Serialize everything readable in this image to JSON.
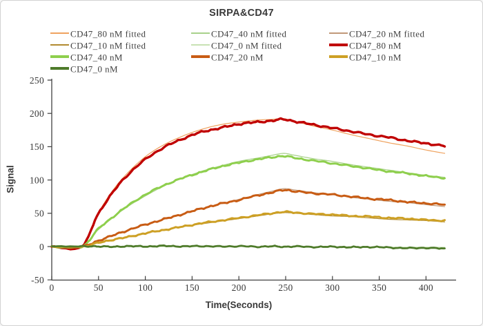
{
  "title": "SIRPA&CD47",
  "chart_data": {
    "type": "line",
    "title": "SIRPA&CD47",
    "xlabel": "Time(Seconds)",
    "ylabel": "Signal",
    "xlim": [
      0,
      432
    ],
    "ylim": [
      -50,
      250
    ],
    "xticks": [
      0,
      50,
      100,
      150,
      200,
      250,
      300,
      350,
      400
    ],
    "yticks": [
      -50,
      0,
      50,
      100,
      150,
      200,
      250
    ],
    "grid": false,
    "legend_position": "top-left, 3 columns",
    "axis_color": "#3f3f3f",
    "phases": {
      "baseline_end_s": 32,
      "association_end_s": 248,
      "end_s": 420
    },
    "series": [
      {
        "label": "CD47_80 nM fitted",
        "kind": "fitted",
        "color": "#efa25e",
        "width": 1.2,
        "noise": 0,
        "points": [
          [
            0,
            0
          ],
          [
            32,
            0
          ],
          [
            48,
            46
          ],
          [
            64,
            82
          ],
          [
            80,
            109
          ],
          [
            100,
            135
          ],
          [
            120,
            153
          ],
          [
            140,
            166
          ],
          [
            160,
            176
          ],
          [
            180,
            183
          ],
          [
            200,
            187
          ],
          [
            220,
            190
          ],
          [
            235,
            191
          ],
          [
            248,
            192
          ],
          [
            260,
            188
          ],
          [
            280,
            181
          ],
          [
            300,
            175
          ],
          [
            320,
            168
          ],
          [
            340,
            162
          ],
          [
            360,
            156
          ],
          [
            380,
            151
          ],
          [
            400,
            145
          ],
          [
            420,
            140
          ]
        ]
      },
      {
        "label": "CD47_40 nM fitted",
        "kind": "fitted",
        "color": "#a8d18a",
        "width": 1.2,
        "noise": 0,
        "points": [
          [
            0,
            0
          ],
          [
            32,
            0
          ],
          [
            48,
            23
          ],
          [
            64,
            42
          ],
          [
            80,
            59
          ],
          [
            100,
            76
          ],
          [
            120,
            91
          ],
          [
            140,
            103
          ],
          [
            160,
            113
          ],
          [
            180,
            121
          ],
          [
            200,
            128
          ],
          [
            220,
            133
          ],
          [
            235,
            137
          ],
          [
            248,
            140
          ],
          [
            260,
            137
          ],
          [
            280,
            132
          ],
          [
            300,
            128
          ],
          [
            320,
            123
          ],
          [
            340,
            119
          ],
          [
            360,
            115
          ],
          [
            380,
            111
          ],
          [
            400,
            107
          ],
          [
            420,
            104
          ]
        ]
      },
      {
        "label": "CD47_20 nM fitted",
        "kind": "fitted",
        "color": "#c09878",
        "width": 1.2,
        "noise": 0,
        "points": [
          [
            0,
            0
          ],
          [
            32,
            0
          ],
          [
            48,
            8
          ],
          [
            64,
            16
          ],
          [
            80,
            24
          ],
          [
            100,
            33
          ],
          [
            120,
            41
          ],
          [
            140,
            49
          ],
          [
            160,
            57
          ],
          [
            180,
            64
          ],
          [
            200,
            71
          ],
          [
            220,
            78
          ],
          [
            235,
            83
          ],
          [
            248,
            87
          ],
          [
            260,
            85
          ],
          [
            280,
            81
          ],
          [
            300,
            78
          ],
          [
            320,
            74
          ],
          [
            340,
            71
          ],
          [
            360,
            68
          ],
          [
            380,
            66
          ],
          [
            400,
            63
          ],
          [
            420,
            60
          ]
        ]
      },
      {
        "label": "CD47_10 nM fitted",
        "kind": "fitted",
        "color": "#b18a2f",
        "width": 1.2,
        "noise": 0,
        "points": [
          [
            0,
            0
          ],
          [
            32,
            0
          ],
          [
            48,
            5
          ],
          [
            64,
            10
          ],
          [
            80,
            14
          ],
          [
            100,
            20
          ],
          [
            120,
            25
          ],
          [
            140,
            30
          ],
          [
            160,
            34
          ],
          [
            180,
            38
          ],
          [
            200,
            42
          ],
          [
            220,
            46
          ],
          [
            235,
            49
          ],
          [
            248,
            51
          ],
          [
            260,
            50
          ],
          [
            280,
            48
          ],
          [
            300,
            46
          ],
          [
            320,
            45
          ],
          [
            340,
            43
          ],
          [
            360,
            41
          ],
          [
            380,
            40
          ],
          [
            400,
            39
          ],
          [
            420,
            37
          ]
        ]
      },
      {
        "label": "CD47_0 nM fitted",
        "kind": "fitted",
        "color": "#c8e2b3",
        "width": 1.2,
        "noise": 0,
        "points": [
          [
            0,
            0
          ],
          [
            100,
            0
          ],
          [
            200,
            0
          ],
          [
            300,
            -0.5
          ],
          [
            420,
            -1
          ]
        ]
      },
      {
        "label": "CD47_80 nM",
        "kind": "raw",
        "color": "#c00000",
        "width": 3.4,
        "noise": 1.6,
        "points": [
          [
            0,
            0
          ],
          [
            32,
            0
          ],
          [
            48,
            45
          ],
          [
            64,
            79
          ],
          [
            80,
            106
          ],
          [
            100,
            131
          ],
          [
            120,
            149
          ],
          [
            140,
            162
          ],
          [
            160,
            172
          ],
          [
            180,
            178
          ],
          [
            200,
            184
          ],
          [
            220,
            187
          ],
          [
            235,
            189
          ],
          [
            248,
            191
          ],
          [
            260,
            188
          ],
          [
            280,
            183
          ],
          [
            300,
            178
          ],
          [
            320,
            173
          ],
          [
            340,
            168
          ],
          [
            360,
            164
          ],
          [
            380,
            159
          ],
          [
            400,
            155
          ],
          [
            420,
            151
          ]
        ]
      },
      {
        "label": "CD47_40 nM",
        "kind": "raw",
        "color": "#8ecf4d",
        "width": 3.0,
        "noise": 1.4,
        "points": [
          [
            0,
            0
          ],
          [
            32,
            0
          ],
          [
            48,
            24
          ],
          [
            64,
            43
          ],
          [
            80,
            60
          ],
          [
            100,
            78
          ],
          [
            120,
            92
          ],
          [
            140,
            103
          ],
          [
            160,
            112
          ],
          [
            180,
            120
          ],
          [
            200,
            126
          ],
          [
            220,
            131
          ],
          [
            235,
            134
          ],
          [
            248,
            136
          ],
          [
            260,
            133
          ],
          [
            280,
            129
          ],
          [
            300,
            125
          ],
          [
            320,
            121
          ],
          [
            340,
            117
          ],
          [
            360,
            113
          ],
          [
            380,
            110
          ],
          [
            400,
            106
          ],
          [
            420,
            103
          ]
        ]
      },
      {
        "label": "CD47_20 nM",
        "kind": "raw",
        "color": "#c85c14",
        "width": 3.0,
        "noise": 1.5,
        "points": [
          [
            0,
            0
          ],
          [
            32,
            0
          ],
          [
            48,
            8
          ],
          [
            64,
            16
          ],
          [
            80,
            24
          ],
          [
            100,
            33
          ],
          [
            120,
            41
          ],
          [
            140,
            49
          ],
          [
            160,
            57
          ],
          [
            180,
            64
          ],
          [
            200,
            70
          ],
          [
            220,
            77
          ],
          [
            235,
            81
          ],
          [
            248,
            85
          ],
          [
            260,
            83
          ],
          [
            280,
            80
          ],
          [
            300,
            78
          ],
          [
            320,
            75
          ],
          [
            340,
            72
          ],
          [
            360,
            70
          ],
          [
            380,
            67
          ],
          [
            400,
            65
          ],
          [
            420,
            63
          ]
        ]
      },
      {
        "label": "CD47_10 nM",
        "kind": "raw",
        "color": "#cda025",
        "width": 3.0,
        "noise": 1.3,
        "points": [
          [
            0,
            0
          ],
          [
            32,
            0
          ],
          [
            48,
            5
          ],
          [
            64,
            10
          ],
          [
            80,
            14
          ],
          [
            100,
            20
          ],
          [
            120,
            25
          ],
          [
            140,
            30
          ],
          [
            160,
            35
          ],
          [
            180,
            39
          ],
          [
            200,
            43
          ],
          [
            220,
            47
          ],
          [
            235,
            50
          ],
          [
            248,
            52
          ],
          [
            260,
            51
          ],
          [
            280,
            49
          ],
          [
            300,
            48
          ],
          [
            320,
            46
          ],
          [
            340,
            45
          ],
          [
            360,
            43
          ],
          [
            380,
            42
          ],
          [
            400,
            40
          ],
          [
            420,
            39
          ]
        ]
      },
      {
        "label": "CD47_0 nM",
        "kind": "raw",
        "color": "#4e7b2a",
        "width": 2.8,
        "noise": 1.1,
        "points": [
          [
            0,
            0.3
          ],
          [
            32,
            0.2
          ],
          [
            48,
            0.5
          ],
          [
            64,
            -0.4
          ],
          [
            80,
            0.6
          ],
          [
            100,
            0.2
          ],
          [
            120,
            0.9
          ],
          [
            140,
            0.3
          ],
          [
            160,
            0.7
          ],
          [
            180,
            0.1
          ],
          [
            200,
            0.5
          ],
          [
            220,
            -0.2
          ],
          [
            235,
            0.3
          ],
          [
            248,
            -0.2
          ],
          [
            260,
            0.2
          ],
          [
            280,
            -0.6
          ],
          [
            300,
            -0.3
          ],
          [
            320,
            -1
          ],
          [
            340,
            -0.6
          ],
          [
            360,
            -1.4
          ],
          [
            380,
            -2.4
          ],
          [
            400,
            -2
          ],
          [
            420,
            -3.2
          ]
        ]
      }
    ]
  }
}
